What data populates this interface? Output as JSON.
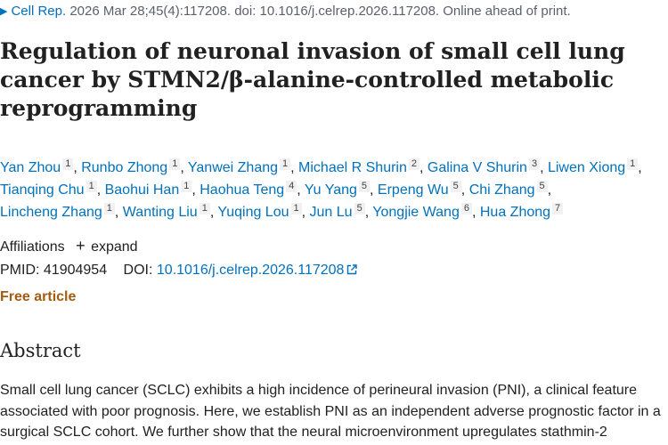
{
  "citation": {
    "journal": "Cell Rep.",
    "details": "2026 Mar 28;45(4):117208. doi: 10.1016/j.celrep.2026.117208. Online ahead of print."
  },
  "title": "Regulation of neuronal invasion of small cell lung cancer by STMN2/β-alanine-controlled metabolic reprogramming",
  "authors": [
    {
      "name": "Yan Zhou",
      "aff": "1"
    },
    {
      "name": "Runbo Zhong",
      "aff": "1"
    },
    {
      "name": "Yanwei Zhang",
      "aff": "1"
    },
    {
      "name": "Michael R Shurin",
      "aff": "2"
    },
    {
      "name": "Galina V Shurin",
      "aff": "3"
    },
    {
      "name": "Liwen Xiong",
      "aff": "1"
    },
    {
      "name": "Tianqing Chu",
      "aff": "1"
    },
    {
      "name": "Baohui Han",
      "aff": "1"
    },
    {
      "name": "Haohua Teng",
      "aff": "4"
    },
    {
      "name": "Yu Yang",
      "aff": "5"
    },
    {
      "name": "Erpeng Wu",
      "aff": "5"
    },
    {
      "name": "Chi Zhang",
      "aff": "5"
    },
    {
      "name": "Lincheng Zhang",
      "aff": "1"
    },
    {
      "name": "Wanting Liu",
      "aff": "1"
    },
    {
      "name": "Yuqing Lou",
      "aff": "1"
    },
    {
      "name": "Jun Lu",
      "aff": "5"
    },
    {
      "name": "Yongjie Wang",
      "aff": "6"
    },
    {
      "name": "Hua Zhong",
      "aff": "7"
    }
  ],
  "affiliations": {
    "label": "Affiliations",
    "expand_label": "expand"
  },
  "identifiers": {
    "pmid_label": "PMID:",
    "pmid": "41904954",
    "doi_label": "DOI:",
    "doi": "10.1016/j.celrep.2026.117208"
  },
  "free_article": "Free article",
  "abstract": {
    "heading": "Abstract",
    "text": "Small cell lung cancer (SCLC) exhibits a high incidence of perineural invasion (PNI), a clinical feature associated with poor prognosis. Here, we establish PNI as an independent adverse prognostic factor in a surgical SCLC cohort. We further show that the neural microenvironment upregulates stathmin-2"
  },
  "colors": {
    "link": "#0071bc",
    "free_article": "#a55b0e",
    "text": "#212121"
  },
  "icons": {
    "journal_toggle": "triangle-right-icon",
    "expand": "plus-icon",
    "doi_link": "external-link-icon"
  }
}
